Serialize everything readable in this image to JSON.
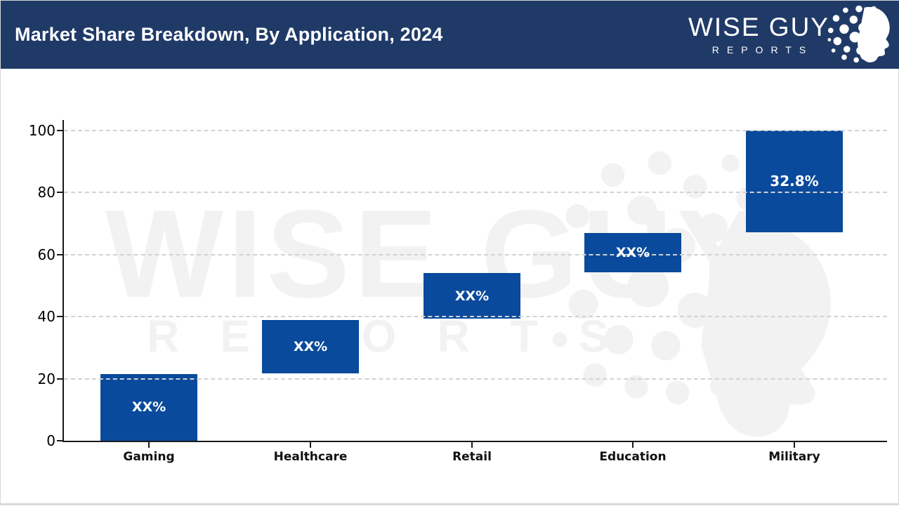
{
  "header": {
    "title": "Market Share Breakdown, By Application, 2024",
    "logo": {
      "line1": "WISE GUY",
      "line2": "REPORTS"
    }
  },
  "watermark": {
    "line1": "WISE GUY",
    "line2": "REPORTS"
  },
  "colors": {
    "header_bg": "#203a68",
    "bar_blue": "#0a4a9c",
    "grid_gray": "#d2d2d2",
    "axis_black": "#1a1a1a",
    "watermark_gray": "#f2f2f2",
    "label_white": "#ffffff"
  },
  "chart_data": {
    "type": "bar",
    "subtype": "waterfall",
    "title": "Market Share Breakdown, By Application, 2024",
    "xlabel": "",
    "ylabel": "",
    "categories": [
      "Gaming",
      "Healthcare",
      "Retail",
      "Education",
      "Military"
    ],
    "segments": [
      {
        "category": "Gaming",
        "start": 0.0,
        "end": 21.5,
        "value": 21.5,
        "label": "XX%"
      },
      {
        "category": "Healthcare",
        "start": 21.8,
        "end": 39.0,
        "value": 17.2,
        "label": "XX%"
      },
      {
        "category": "Retail",
        "start": 39.3,
        "end": 54.1,
        "value": 14.8,
        "label": "XX%"
      },
      {
        "category": "Education",
        "start": 54.4,
        "end": 67.0,
        "value": 12.6,
        "label": "XX%"
      },
      {
        "category": "Military",
        "start": 67.2,
        "end": 100.0,
        "value": 32.8,
        "label": "32.8%"
      }
    ],
    "yticks": [
      0,
      20,
      40,
      60,
      80,
      100
    ],
    "ylim": [
      0,
      107
    ],
    "grid": true,
    "grid_style": "dashed",
    "legend": "none"
  }
}
